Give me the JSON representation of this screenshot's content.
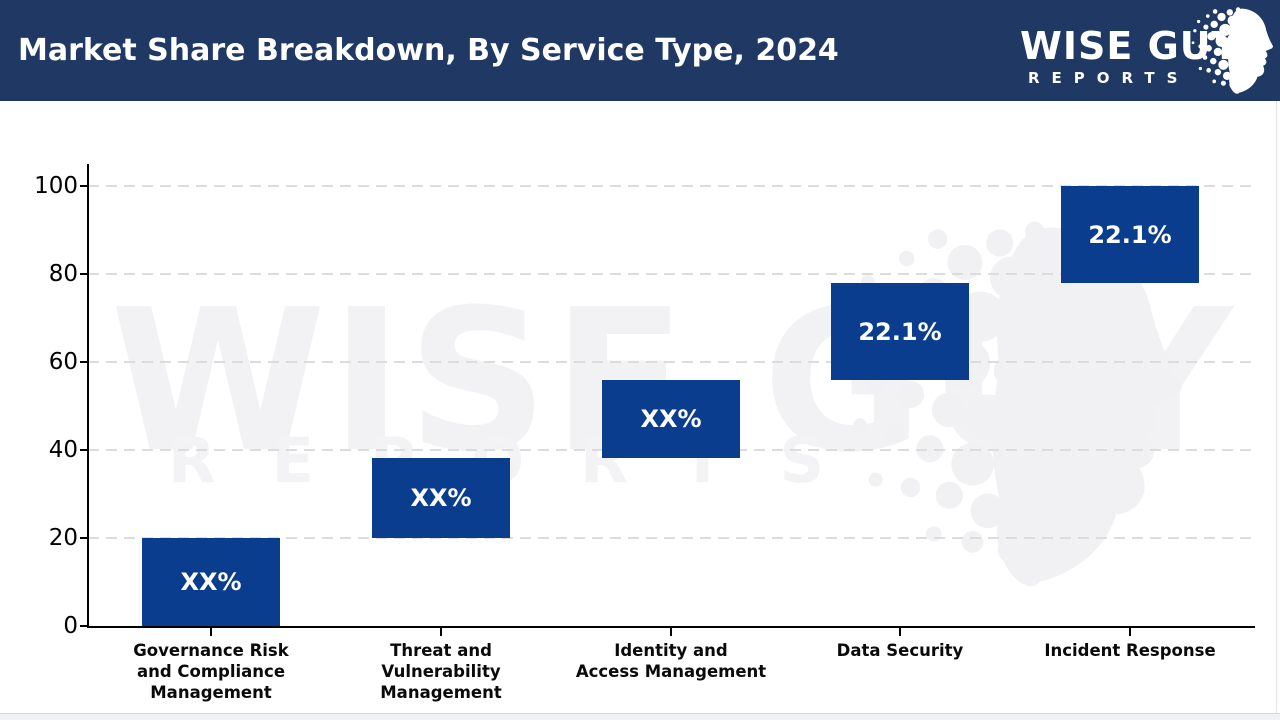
{
  "header": {
    "title": "Market Share Breakdown, By Service Type, 2024",
    "logo": {
      "wordmark": "WISE GUY",
      "subtext": "REPORTS"
    }
  },
  "watermark": {
    "wordmark": "WISE GUY",
    "subtext": "REPORTS"
  },
  "chart_data": {
    "type": "bar",
    "variant": "waterfall",
    "title": "Market Share Breakdown, By Service Type, 2024",
    "xlabel": "",
    "ylabel": "",
    "ylim": [
      0,
      105
    ],
    "y_ticks": [
      0,
      20,
      40,
      60,
      80,
      100
    ],
    "grid": "horizontal dashed",
    "legend": "none",
    "categories": [
      "Governance Risk and Compliance Management",
      "Threat and Vulnerability Management",
      "Identity and Access Management",
      "Data Security",
      "Incident Response"
    ],
    "category_label_lines": [
      [
        "Governance Risk",
        "and Compliance",
        "Management"
      ],
      [
        "Threat and",
        "Vulnerability",
        "Management"
      ],
      [
        "Identity and",
        "Access Management"
      ],
      [
        "Data Security"
      ],
      [
        "Incident Response"
      ]
    ],
    "segments": [
      {
        "category": "Governance Risk and Compliance Management",
        "start": 0,
        "end": 20,
        "value_approx": 20.0,
        "value_label": "XX%"
      },
      {
        "category": "Threat and Vulnerability Management",
        "start": 20,
        "end": 38.2,
        "value_approx": 18.2,
        "value_label": "XX%"
      },
      {
        "category": "Identity and Access Management",
        "start": 38.2,
        "end": 55.8,
        "value_approx": 17.6,
        "value_label": "XX%"
      },
      {
        "category": "Data Security",
        "start": 55.8,
        "end": 77.9,
        "value_approx": 22.1,
        "value_label": "22.1%"
      },
      {
        "category": "Incident Response",
        "start": 77.9,
        "end": 100,
        "value_approx": 22.1,
        "value_label": "22.1%"
      }
    ],
    "bar_color": "#0b3d8f",
    "bar_label_color": "#ffffff"
  },
  "colors": {
    "header_bg": "#1f3864",
    "header_text": "#ffffff",
    "bar": "#0b3d8f",
    "axis": "#000000",
    "gridline": "#dcdcdc",
    "tick_label": "#000000",
    "watermark": "#f2f2f4",
    "page_bg": "#ffffff"
  }
}
